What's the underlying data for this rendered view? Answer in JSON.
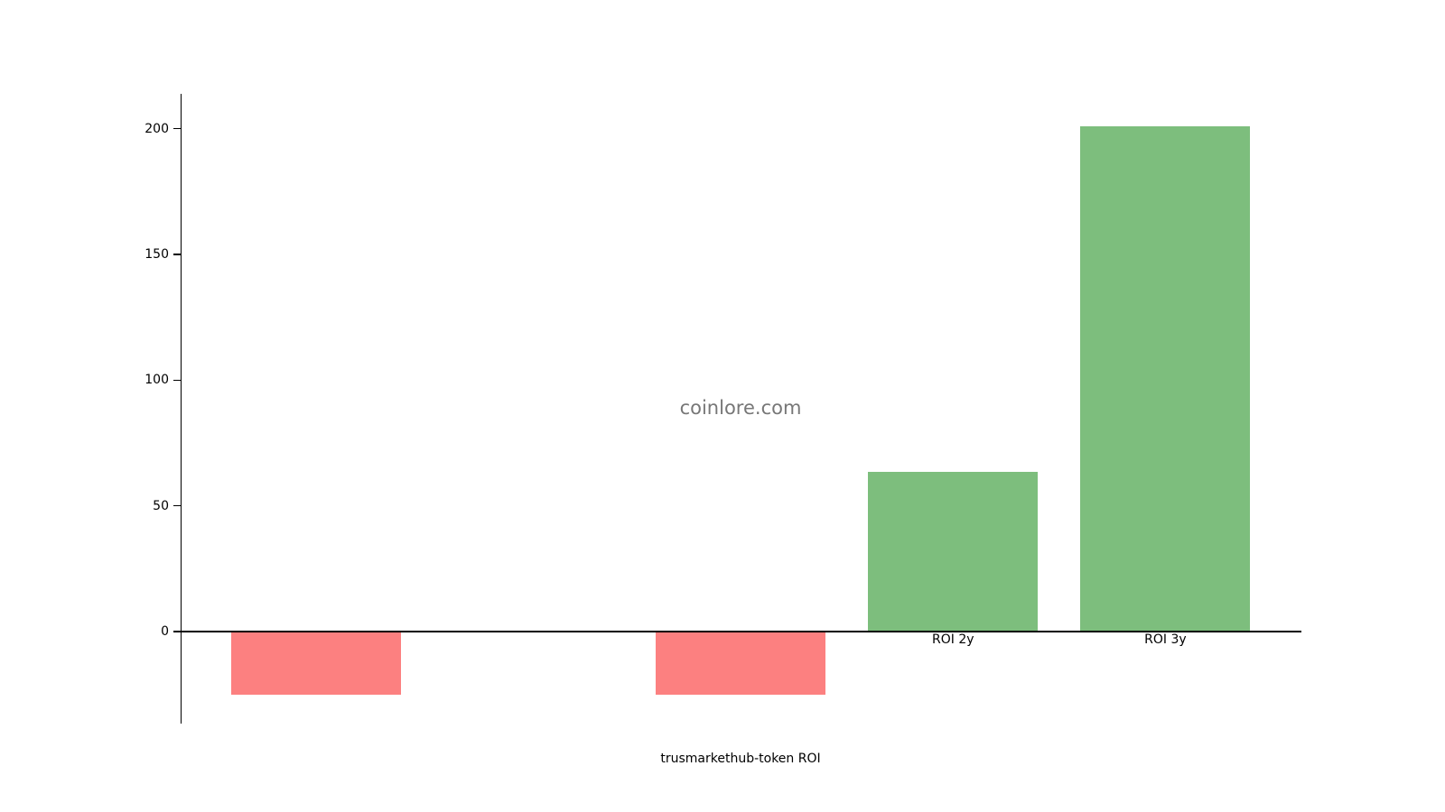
{
  "watermark": {
    "text": "coinlore.com",
    "color": "#777777"
  },
  "caption": {
    "text": "trusmarkethub-token ROI"
  },
  "colors": {
    "positive_bar": "#7dbe7d",
    "negative_bar": "#fc8080",
    "axis": "#000000",
    "background": "#ffffff"
  },
  "chart_data": {
    "type": "bar",
    "title": "trusmarkethub-token ROI",
    "categories": [
      "",
      "",
      "",
      "ROI 2y",
      "ROI 3y"
    ],
    "values": [
      -25,
      0,
      -25,
      63.5,
      201
    ],
    "bar_colors": [
      "#fc8080",
      null,
      "#fc8080",
      "#7dbe7d",
      "#7dbe7d"
    ],
    "yticks": [
      0,
      50,
      100,
      150,
      200
    ],
    "ylim": [
      -36.6,
      213.9
    ],
    "xlabel": "trusmarkethub-token ROI",
    "ylabel": "",
    "grid": false,
    "legend": null,
    "watermark": "coinlore.com",
    "notes": "negative values red, positive values green; x tick labels only visible for ROI 2y and ROI 3y"
  }
}
